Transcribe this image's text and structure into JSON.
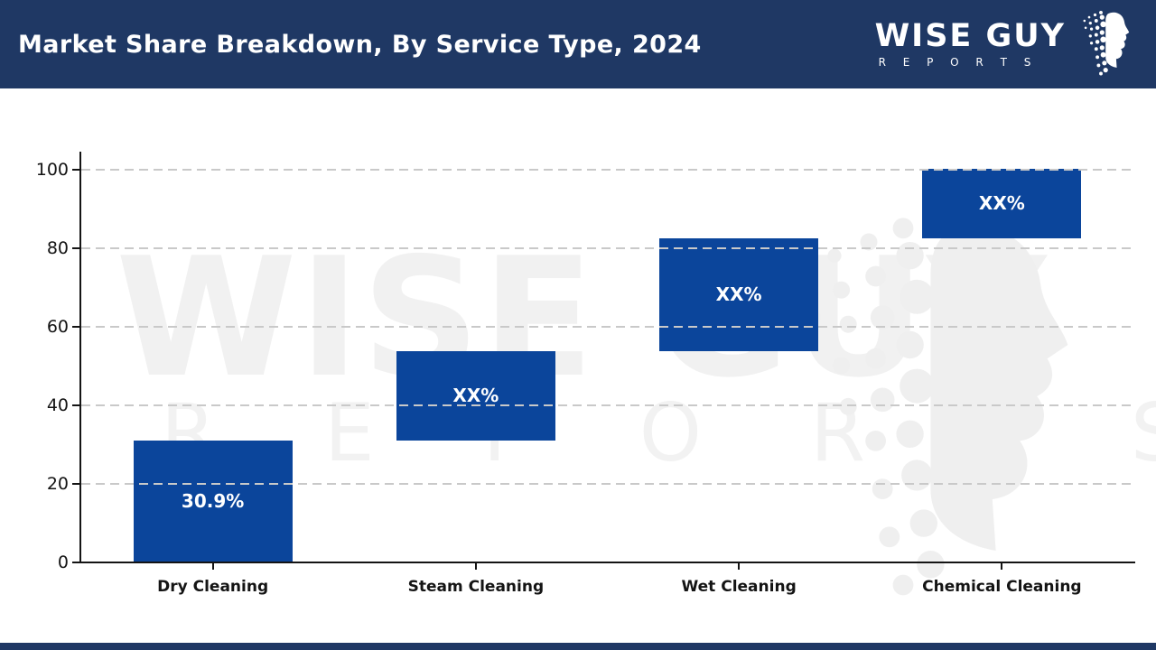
{
  "header": {
    "title": "Market Share Breakdown, By Service Type, 2024",
    "logo": {
      "line1": "WISE GUY",
      "line2": "R E P O R T S"
    }
  },
  "watermark": {
    "line1": "WISE GUY",
    "line2": "R E P O R T S"
  },
  "chart_data": {
    "type": "bar",
    "subtype": "waterfall",
    "title": "Market Share Breakdown, By Service Type, 2024",
    "categories": [
      "Dry Cleaning",
      "Steam Cleaning",
      "Wet Cleaning",
      "Chemical Cleaning"
    ],
    "series": [
      {
        "name": "Market share (%)",
        "segments": [
          {
            "category": "Dry Cleaning",
            "start": 0,
            "end": 30.9,
            "label": "30.9%"
          },
          {
            "category": "Steam Cleaning",
            "start": 30.9,
            "end": 53.6,
            "label": "XX%"
          },
          {
            "category": "Wet Cleaning",
            "start": 53.6,
            "end": 82.4,
            "label": "XX%"
          },
          {
            "category": "Chemical Cleaning",
            "start": 82.4,
            "end": 100,
            "label": "XX%"
          }
        ]
      }
    ],
    "xlabel": "",
    "ylabel": "",
    "ylim": [
      0,
      100
    ],
    "yticks": [
      0,
      20,
      40,
      60,
      80,
      100
    ],
    "grid": "horizontal-dashed-over-bars",
    "legend": "none",
    "colors": {
      "bar": "#0B459B",
      "bar_label": "#FFFFFF",
      "grid": "#C9C9C9",
      "axis": "#141414",
      "header_bg": "#1F3864",
      "footer_bg": "#1F3864",
      "page_bg": "#FFFFFF",
      "watermark": "#F1F1F1"
    }
  }
}
